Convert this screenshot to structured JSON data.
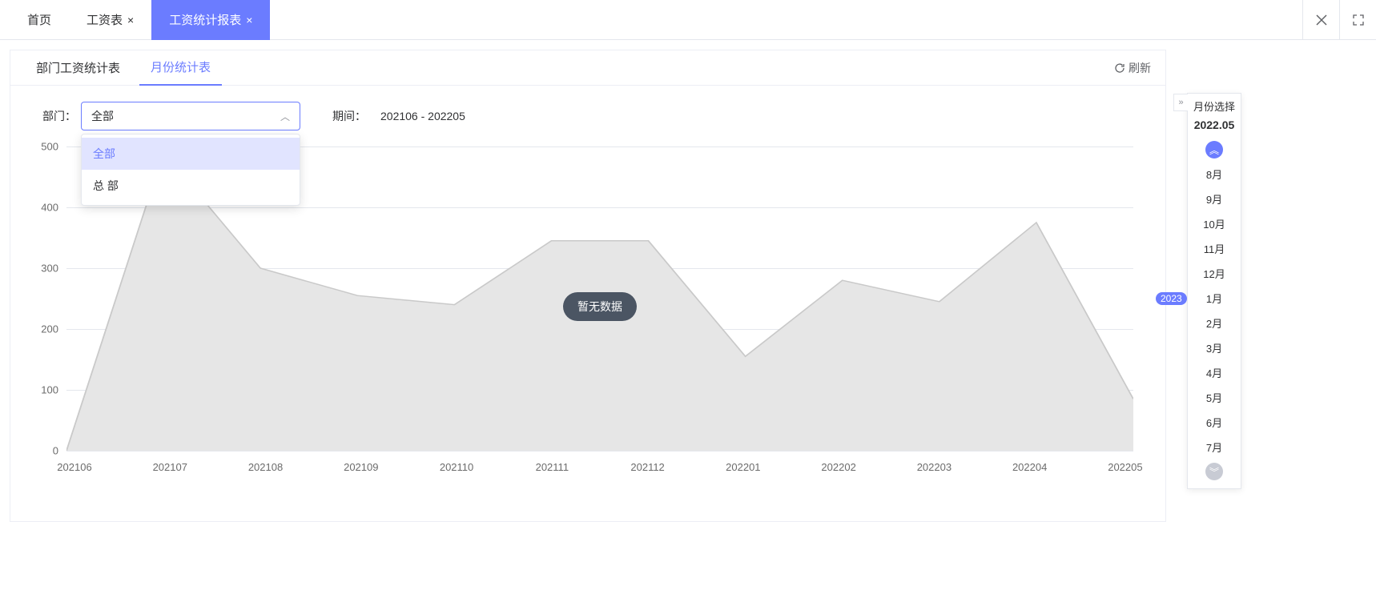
{
  "top_tabs": {
    "items": [
      {
        "label": "首页",
        "closable": false,
        "active": false
      },
      {
        "label": "工资表",
        "closable": true,
        "active": false
      },
      {
        "label": "工资统计报表",
        "closable": true,
        "active": true
      }
    ]
  },
  "topright": {
    "close_label": "×",
    "expand_label": "⛶"
  },
  "sub_tabs": {
    "items": [
      {
        "label": "部门工资统计表",
        "active": false
      },
      {
        "label": "月份统计表",
        "active": true
      }
    ],
    "refresh_label": "刷新"
  },
  "filter": {
    "dept_label": "部门：",
    "dept_value": "全部",
    "dept_options": [
      {
        "label": "全部",
        "selected": true
      },
      {
        "label": "总 部",
        "selected": false
      }
    ],
    "period_label": "期间：",
    "period_value": "202106 - 202205"
  },
  "chart": {
    "type": "area",
    "no_data_label": "暂无数据",
    "y_ticks": [
      0,
      100,
      200,
      300,
      400,
      500
    ],
    "ylim": [
      0,
      500
    ],
    "x_categories": [
      "202106",
      "202107",
      "202108",
      "202109",
      "202110",
      "202111",
      "202112",
      "202201",
      "202202",
      "202203",
      "202204",
      "202205"
    ],
    "values": [
      0,
      490,
      300,
      255,
      240,
      345,
      345,
      155,
      280,
      245,
      375,
      85
    ],
    "area_fill": "#e6e6e6",
    "line_color": "#c9c9c9",
    "grid_color": "#e4e7ed",
    "text_color": "#6b6b6b",
    "font_size": 13,
    "background": "#ffffff"
  },
  "month_panel": {
    "title": "月份选择",
    "current": "2022.05",
    "year_badge": "2023",
    "items": [
      "8月",
      "9月",
      "10月",
      "11月",
      "12月",
      "1月",
      "2月",
      "3月",
      "4月",
      "5月",
      "6月",
      "7月"
    ],
    "badge_index": 5
  }
}
